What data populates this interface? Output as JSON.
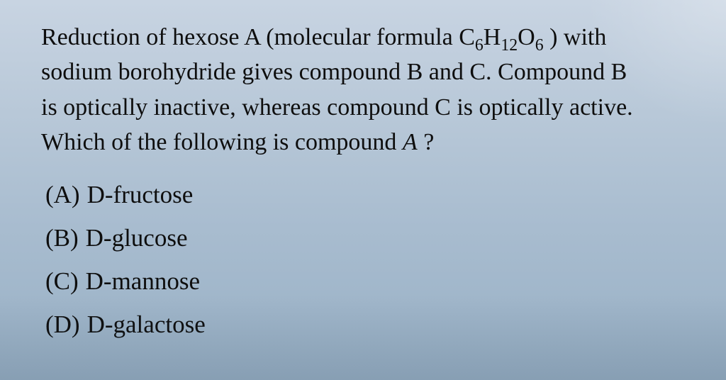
{
  "question": {
    "line1_prefix": "Reduction of hexose A (molecular formula ",
    "formula_parts": {
      "c": "C",
      "c_sub": "6",
      "h": "H",
      "h_sub": "12",
      "o": "O",
      "o_sub": "6"
    },
    "line1_suffix": " ) with",
    "line2": "sodium borohydride gives compound B and C. Compound B",
    "line3": "is optically inactive, whereas compound C is optically active.",
    "line4_prefix": "Which of the following is compound ",
    "line4_var": "A",
    "line4_suffix": " ?"
  },
  "options": [
    {
      "label": "(A)",
      "text": "D-fructose"
    },
    {
      "label": "(B)",
      "text": "D-glucose"
    },
    {
      "label": "(C)",
      "text": "D-mannose"
    },
    {
      "label": "(D)",
      "text": "D-galactose"
    }
  ],
  "styling": {
    "bg_gradient_top": "#c8d4e2",
    "bg_gradient_bottom": "#98b0c5",
    "text_color": "#0e0e0e",
    "question_fontsize": 34,
    "option_fontsize": 35,
    "font_family": "Georgia, 'Times New Roman', serif"
  }
}
